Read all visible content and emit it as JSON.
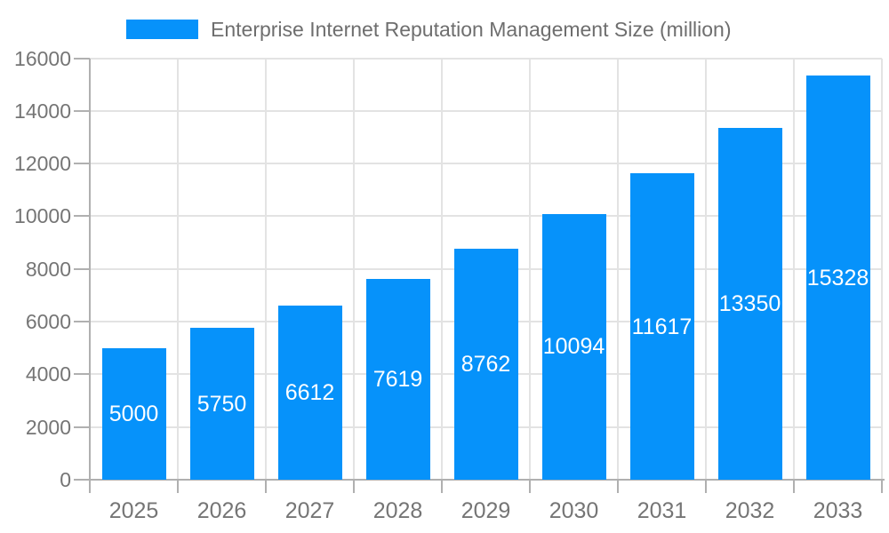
{
  "chart_data": {
    "type": "bar",
    "title": "Enterprise Internet Reputation Management Size (million)",
    "categories": [
      "2025",
      "2026",
      "2027",
      "2028",
      "2029",
      "2030",
      "2031",
      "2032",
      "2033"
    ],
    "values": [
      5000,
      5750,
      6612,
      7619,
      8762,
      10094,
      11617,
      13350,
      15328
    ],
    "xlabel": "",
    "ylabel": "",
    "ylim": [
      0,
      16000
    ],
    "ytick_step": 2000,
    "ytick_labels": [
      "0",
      "2000",
      "4000",
      "6000",
      "8000",
      "10000",
      "12000",
      "14000",
      "16000"
    ],
    "grid": "horizontal and vertical gridlines on",
    "legend_position": "top",
    "value_label_position": "inside bars, centered, white",
    "colors": {
      "bar": "#0692fa",
      "axis_line": "#b0b0b0",
      "tick": "#b0b0b0",
      "gridline": "#e3e3e3",
      "axis_text": "#757575",
      "title_text": "#6e6e6e",
      "value_label_text": "#ffffff",
      "background": "#ffffff"
    }
  }
}
